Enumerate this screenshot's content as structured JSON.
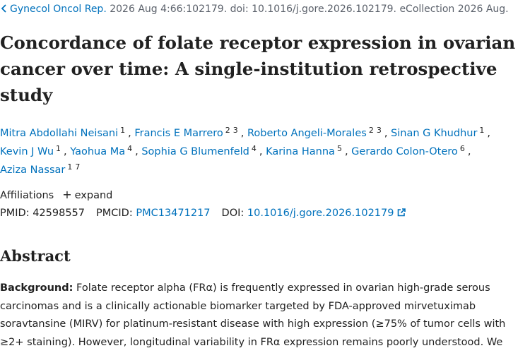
{
  "citation": {
    "journal": "Gynecol Oncol Rep.",
    "details": "2026 Aug 4:66:102179. doi: 10.1016/j.gore.2026.102179. eCollection 2026 Aug."
  },
  "title": "Concordance of folate receptor expression in ovarian cancer over time: A single-institution retrospective study",
  "authors": [
    {
      "name": "Mitra Abdollahi Neisani",
      "affiliations": [
        1
      ]
    },
    {
      "name": "Francis E Marrero",
      "affiliations": [
        2,
        3
      ]
    },
    {
      "name": "Roberto Angeli-Morales",
      "affiliations": [
        2,
        3
      ]
    },
    {
      "name": "Sinan G Khudhur",
      "affiliations": [
        1
      ]
    },
    {
      "name": "Kevin J Wu",
      "affiliations": [
        1
      ]
    },
    {
      "name": "Yaohua Ma",
      "affiliations": [
        4
      ]
    },
    {
      "name": "Sophia G Blumenfeld",
      "affiliations": [
        4
      ]
    },
    {
      "name": "Karina Hanna",
      "affiliations": [
        5
      ]
    },
    {
      "name": "Gerardo Colon-Otero",
      "affiliations": [
        6
      ]
    },
    {
      "name": "Aziza Nassar",
      "affiliations": [
        1,
        7
      ]
    }
  ],
  "author_separator": ",",
  "affiliations": {
    "label": "Affiliations",
    "toggle": "expand"
  },
  "identifiers": [
    {
      "label": "PMID:",
      "value": "42598557"
    },
    {
      "label": "PMCID:",
      "value": "PMC13471217"
    },
    {
      "label": "DOI:",
      "value": "10.1016/j.gore.2026.102179"
    }
  ],
  "abstract": {
    "heading": "Abstract",
    "sections": [
      {
        "label": "Background:",
        "text": "Folate receptor alpha (FRα) is frequently expressed in ovarian high-grade serous carcinomas and is a clinically actionable biomarker targeted by FDA-approved mirvetuximab soravtansine (MIRV) for platinum-resistant disease with high expression (≥75% of tumor cells with ≥2+ staining). However, longitudinal variability in FRα expression remains poorly understood. We"
      }
    ]
  }
}
